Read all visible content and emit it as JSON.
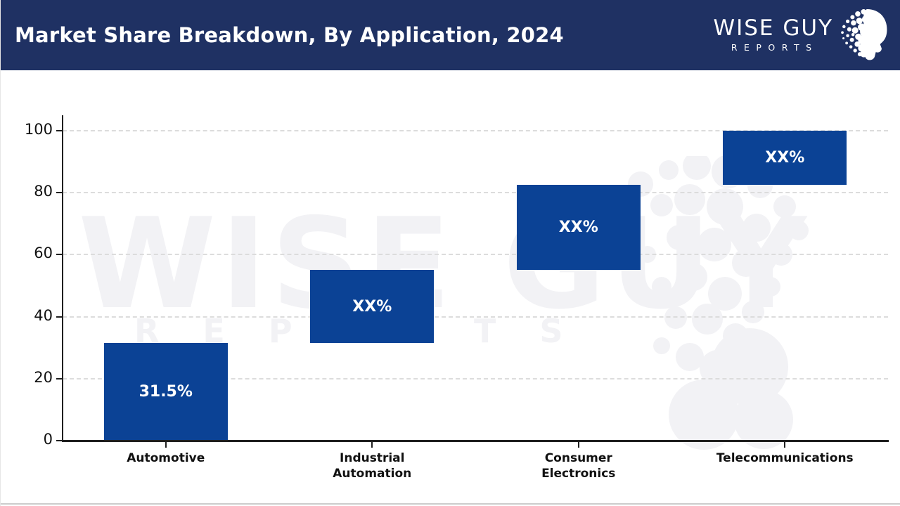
{
  "header": {
    "title": "Market Share Breakdown, By Application, 2024",
    "background": "#1F3163",
    "logo": {
      "line1": "WISE GUY",
      "line2": "REPORTS"
    }
  },
  "watermark": {
    "line1": "WISE GUY",
    "line2": "REPORTS"
  },
  "chart_data": {
    "type": "bar",
    "subtype": "waterfall",
    "title": "Market Share Breakdown, By Application, 2024",
    "categories": [
      "Automotive",
      "Industrial\nAutomation",
      "Consumer\nElectronics",
      "Telecommunications"
    ],
    "bars": [
      {
        "category": "Automotive",
        "start": 0,
        "end": 31.5,
        "label": "31.5%"
      },
      {
        "category": "Industrial Automation",
        "start": 31.5,
        "end": 55,
        "label": "XX%"
      },
      {
        "category": "Consumer Electronics",
        "start": 55,
        "end": 82.5,
        "label": "XX%"
      },
      {
        "category": "Telecommunications",
        "start": 82.5,
        "end": 100,
        "label": "XX%"
      }
    ],
    "yticks": [
      0,
      20,
      40,
      60,
      80,
      100
    ],
    "ylim": [
      0,
      105
    ],
    "grid": "horizontal dashed",
    "legend": "none",
    "bar_color": "#0B4295",
    "label_color": "#ffffff",
    "axis_color": "#1f1f1f"
  }
}
